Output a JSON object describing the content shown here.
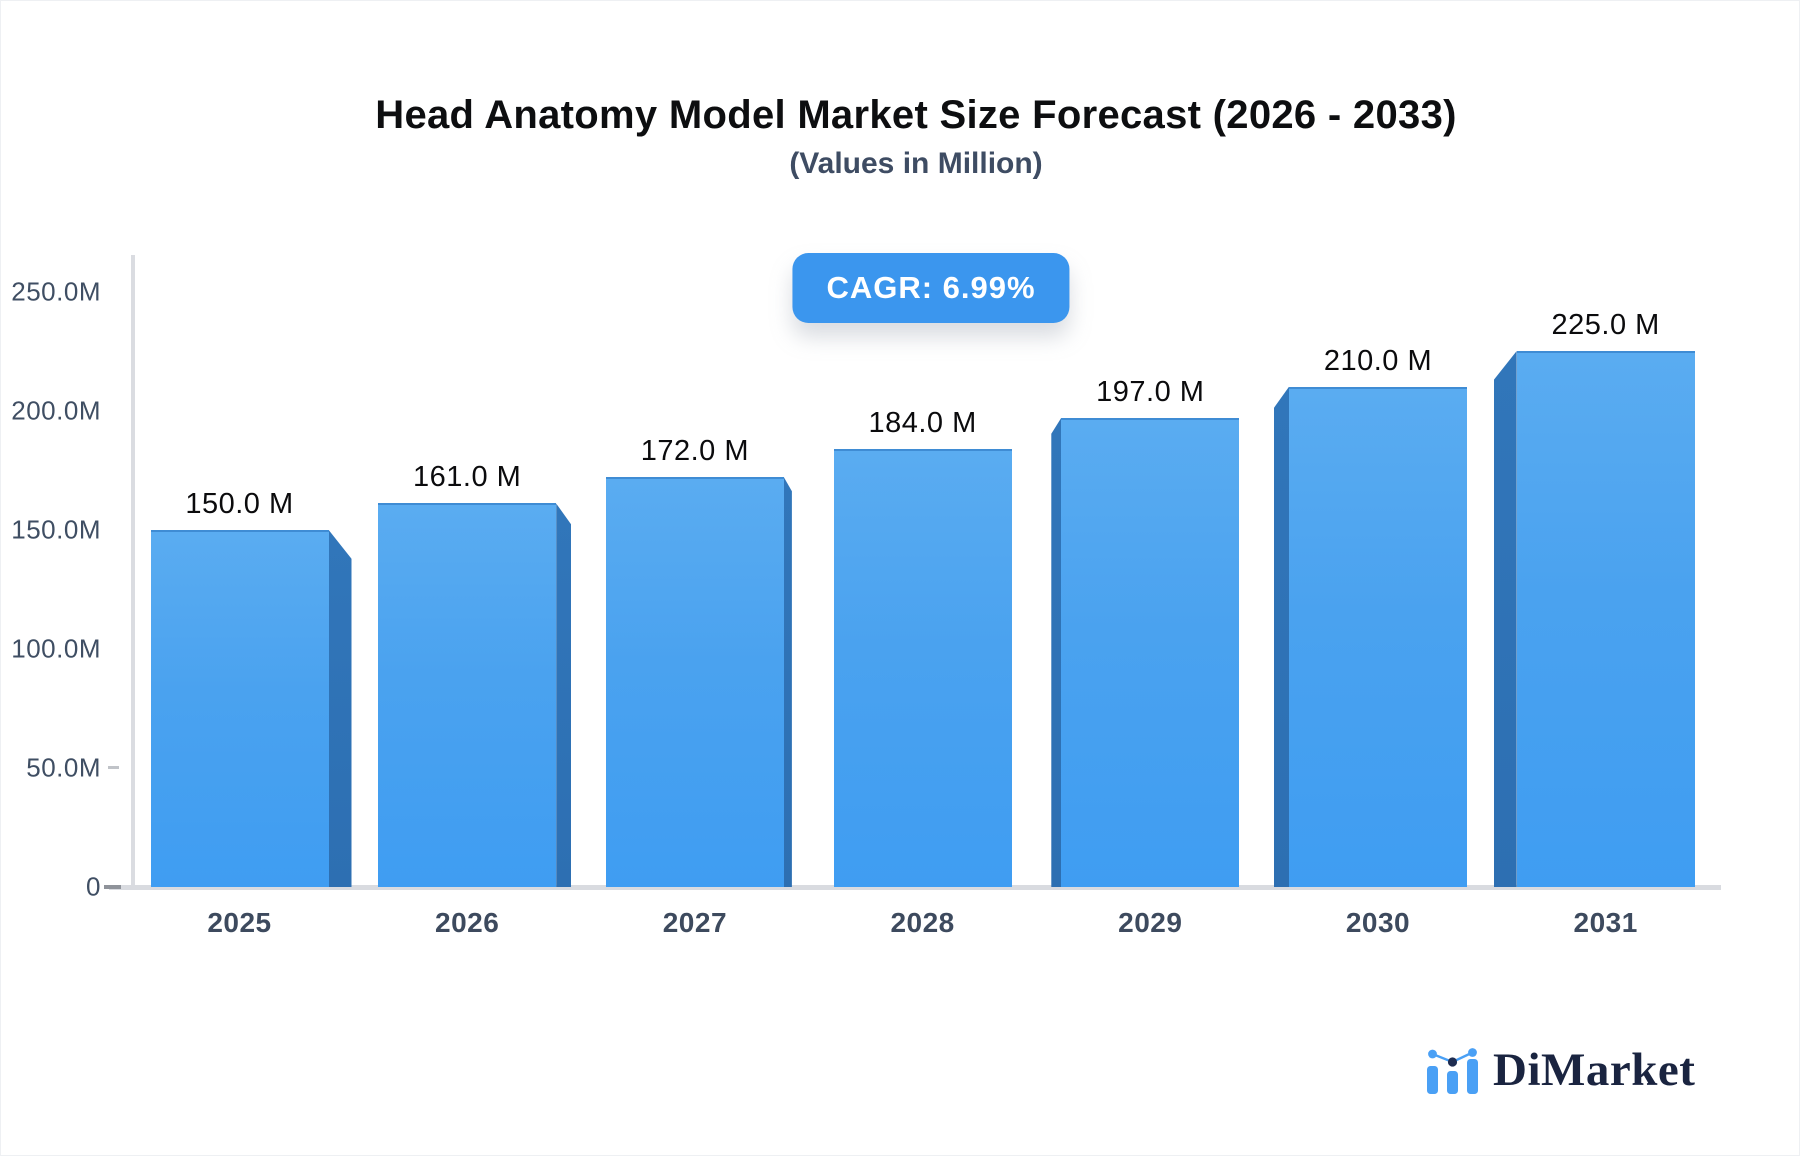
{
  "header": {
    "title": "Head Anatomy Model Market Size Forecast (2026 - 2033)",
    "subtitle": "(Values in Million)"
  },
  "badge": {
    "cagr_label": "CAGR: 6.99%"
  },
  "chart_data": {
    "type": "bar",
    "title": "Head Anatomy Model Market Size Forecast (2026 - 2033)",
    "subtitle": "(Values in Million)",
    "categories": [
      "2025",
      "2026",
      "2027",
      "2028",
      "2029",
      "2030",
      "2031"
    ],
    "values": [
      150,
      161,
      172,
      184,
      197,
      210,
      225
    ],
    "bar_labels": [
      "150.0 M",
      "161.0 M",
      "172.0 M",
      "184.0 M",
      "197.0 M",
      "210.0 M",
      "225.0 M"
    ],
    "unit": "Million",
    "xlabel": "",
    "ylabel": "",
    "ylim": [
      0,
      250
    ],
    "grid": false,
    "legend": false,
    "yticks": [
      {
        "value": 0,
        "label": "0",
        "tick": "large"
      },
      {
        "value": 50,
        "label": "50.0M",
        "tick": "small"
      },
      {
        "value": 100,
        "label": "100.0M",
        "tick": "none"
      },
      {
        "value": 150,
        "label": "150.0M",
        "tick": "none"
      },
      {
        "value": 200,
        "label": "200.0M",
        "tick": "none"
      },
      {
        "value": 250,
        "label": "250.0M",
        "tick": "none"
      }
    ]
  },
  "logo": {
    "text": "DiMarket"
  },
  "colors": {
    "bar_face": "#4aa2ef",
    "bar_side": "#2e73b6",
    "badge_background": "#3b96ee",
    "badge_text": "#ffffff",
    "axis_line": "#d9dbe0",
    "axis_text": "#3f4e63",
    "logo_navy": "#1a2440",
    "logo_blue": "#4aa0f5"
  }
}
